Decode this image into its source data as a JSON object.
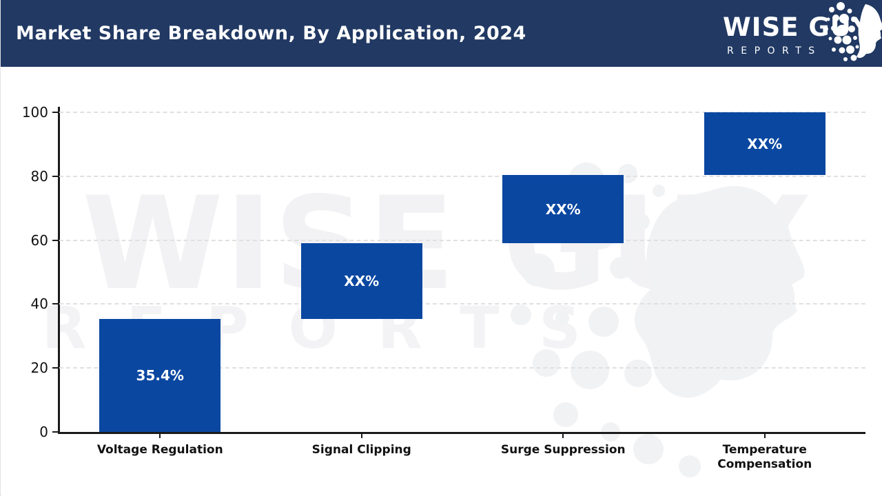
{
  "header": {
    "title": "Market Share Breakdown, By Application, 2024",
    "logo": {
      "line1": "WISE GUY",
      "line2": "R E P O R T S"
    }
  },
  "watermark": {
    "line1": "WISE GUY",
    "line2": "REPORTS"
  },
  "colors": {
    "header_bg": "#213963",
    "bar": "#0a47a1",
    "bar_label": "#ffffff",
    "grid": "#e0e0e0",
    "axis": "#1a1a1a",
    "watermark": "#f2f2f4"
  },
  "chart_data": {
    "type": "bar",
    "subtype": "waterfall",
    "title": "Market Share Breakdown, By Application, 2024",
    "categories": [
      "Voltage Regulation",
      "Signal Clipping",
      "Surge Suppression",
      "Temperature Compensation"
    ],
    "segments": [
      {
        "category": "Voltage Regulation",
        "start": 0,
        "end": 35.4,
        "label": "35.4%"
      },
      {
        "category": "Signal Clipping",
        "start": 35.4,
        "end": 59,
        "label": "XX%"
      },
      {
        "category": "Surge Suppression",
        "start": 59,
        "end": 80.3,
        "label": "XX%"
      },
      {
        "category": "Temperature Compensation",
        "start": 80.3,
        "end": 100,
        "label": "XX%"
      }
    ],
    "ylim": [
      0,
      100
    ],
    "yticks": [
      0,
      20,
      40,
      60,
      80,
      100
    ],
    "grid": "horizontal-dashed",
    "legend": "none",
    "xlabel": "",
    "ylabel": ""
  }
}
